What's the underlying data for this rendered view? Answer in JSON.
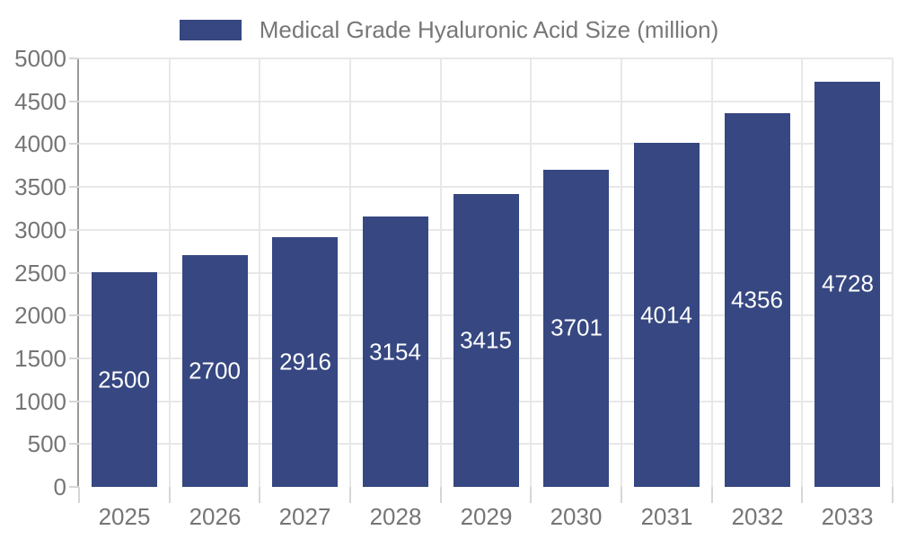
{
  "chart_data": {
    "type": "bar",
    "title": "Medical Grade Hyaluronic Acid Size (million)",
    "categories": [
      "2025",
      "2026",
      "2027",
      "2028",
      "2029",
      "2030",
      "2031",
      "2032",
      "2033"
    ],
    "values": [
      2500,
      2700,
      2916,
      3154,
      3415,
      3701,
      4014,
      4356,
      4728
    ],
    "xlabel": "",
    "ylabel": "",
    "ylim": [
      0,
      5000
    ],
    "yticks": [
      0,
      500,
      1000,
      1500,
      2000,
      2500,
      3000,
      3500,
      4000,
      4500,
      5000
    ],
    "grid": true,
    "legend_position": "top",
    "bar_value_labels": "inside-centered",
    "colors": {
      "bar": "#364781",
      "bar_label": "#ffffff",
      "axis_line": "#999999",
      "grid_line": "#e8e8e8",
      "tick_line": "#d6d6d6",
      "axis_text": "#757575",
      "legend_text": "#777777",
      "background": "#ffffff"
    }
  }
}
